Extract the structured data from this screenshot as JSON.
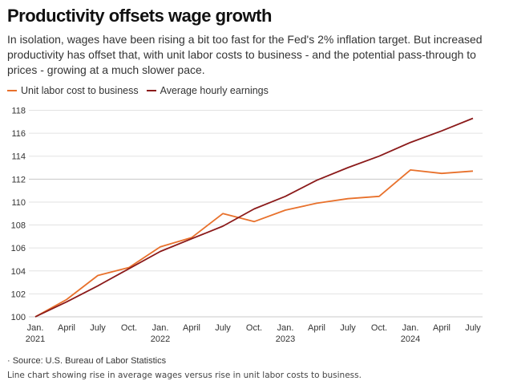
{
  "title": "Productivity offsets wage growth",
  "subtitle": "In isolation, wages have been rising a bit too fast for the Fed's 2% inflation target. But increased productivity has offset that, with unit labor costs to business - and the potential pass-through to prices - growing at a much slower pace.",
  "footnote": "· Source: U.S. Bureau of Labor Statistics",
  "caption": "Line chart showing rise in average wages versus rise in unit labor costs to business.",
  "chart_data": {
    "type": "line",
    "title": "Productivity offsets wage growth",
    "xlabel": "",
    "ylabel": "",
    "x": [
      "Jan. 2021",
      "April",
      "July",
      "Oct.",
      "Jan. 2022",
      "April",
      "July",
      "Oct.",
      "Jan. 2023",
      "April",
      "July",
      "Oct.",
      "Jan. 2024",
      "April",
      "July"
    ],
    "x_tick_labels": [
      {
        "line1": "Jan.",
        "line2": "2021"
      },
      {
        "line1": "April",
        "line2": ""
      },
      {
        "line1": "July",
        "line2": ""
      },
      {
        "line1": "Oct.",
        "line2": ""
      },
      {
        "line1": "Jan.",
        "line2": "2022"
      },
      {
        "line1": "April",
        "line2": ""
      },
      {
        "line1": "July",
        "line2": ""
      },
      {
        "line1": "Oct.",
        "line2": ""
      },
      {
        "line1": "Jan.",
        "line2": "2023"
      },
      {
        "line1": "April",
        "line2": ""
      },
      {
        "line1": "July",
        "line2": ""
      },
      {
        "line1": "Oct.",
        "line2": ""
      },
      {
        "line1": "Jan.",
        "line2": "2024"
      },
      {
        "line1": "April",
        "line2": ""
      },
      {
        "line1": "July",
        "line2": ""
      }
    ],
    "ylim": [
      100,
      118
    ],
    "y_ticks": [
      100,
      102,
      104,
      106,
      108,
      110,
      112,
      114,
      116,
      118
    ],
    "grid": true,
    "legend_position": "top-left",
    "series": [
      {
        "name": "Unit labor cost to business",
        "color": "#e8712c",
        "values": [
          100,
          101.5,
          103.6,
          104.3,
          106.1,
          106.9,
          109.0,
          108.3,
          109.3,
          109.9,
          110.3,
          110.5,
          112.8,
          112.5,
          112.7
        ]
      },
      {
        "name": "Average hourly earnings",
        "color": "#8b1a1a",
        "values": [
          100,
          101.3,
          102.7,
          104.2,
          105.7,
          106.8,
          107.9,
          109.4,
          110.5,
          111.9,
          113.0,
          114.0,
          115.2,
          116.2,
          117.3
        ]
      }
    ]
  }
}
